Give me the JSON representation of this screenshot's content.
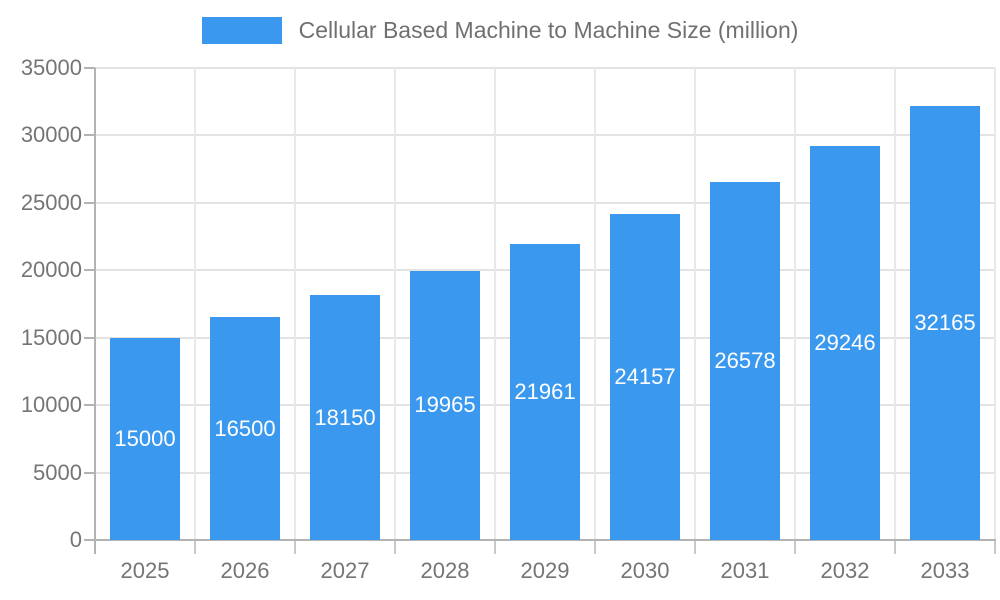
{
  "chart_data": {
    "type": "bar",
    "title": "Cellular Based Machine to Machine Size (million)",
    "legend_label": "Cellular Based Machine to Machine Size (million)",
    "legend_position": "top-center",
    "categories": [
      "2025",
      "2026",
      "2027",
      "2028",
      "2029",
      "2030",
      "2031",
      "2032",
      "2033"
    ],
    "series": [
      {
        "name": "Cellular Based Machine to Machine Size (million)",
        "values": [
          15000,
          16500,
          18150,
          19965,
          21961,
          24157,
          26578,
          29246,
          32165
        ]
      }
    ],
    "data_labels": [
      "15000",
      "16500",
      "18150",
      "19965",
      "21961",
      "24157",
      "26578",
      "29246",
      "32165"
    ],
    "xlabel": "",
    "ylabel": "",
    "ylim": [
      0,
      35000
    ],
    "ytick_step": 5000,
    "yticks": [
      "0",
      "5000",
      "10000",
      "15000",
      "20000",
      "25000",
      "30000",
      "35000"
    ],
    "grid": true,
    "colors": {
      "bar": "#3A99EE",
      "bar_label_text": "#ffffff",
      "axis_text": "#757575",
      "legend_text": "#707070",
      "gridline": "#e3e3e3",
      "axis_line": "#b3b3b3"
    }
  }
}
